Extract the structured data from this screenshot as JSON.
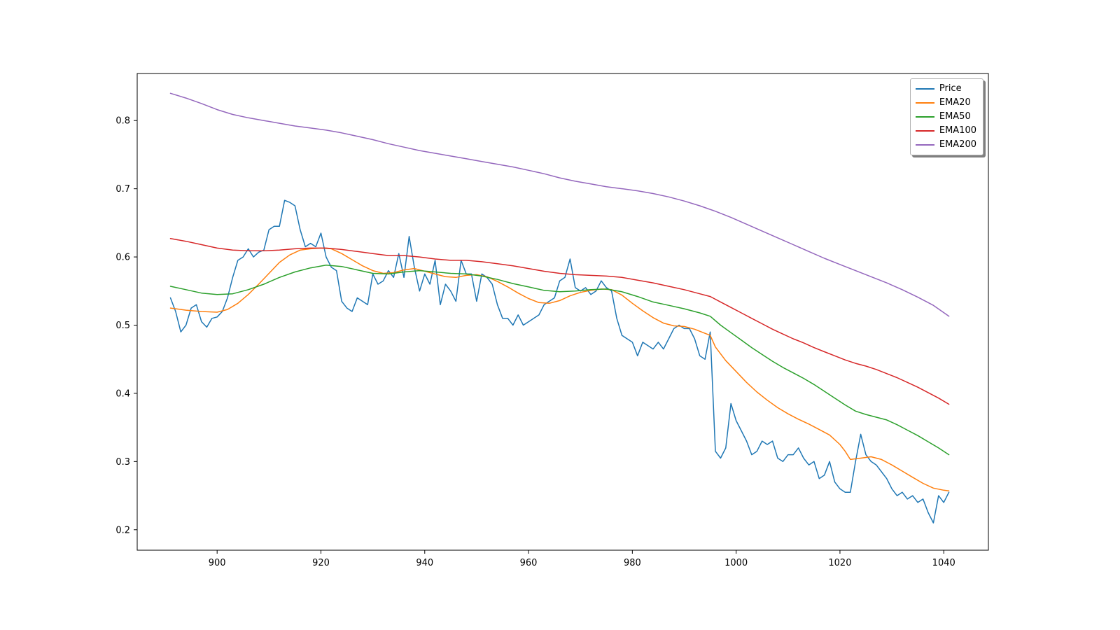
{
  "figure": {
    "background_color": "#ffffff",
    "axes_edge_color": "#000000",
    "tick_label_color": "#000000"
  },
  "chart_data": {
    "type": "line",
    "title": "",
    "xlabel": "",
    "ylabel": "",
    "grid": false,
    "legend_position": "upper right",
    "xlim": [
      884.6,
      1048.6
    ],
    "ylim": [
      0.17,
      0.869
    ],
    "x_ticks": [
      900,
      920,
      940,
      960,
      980,
      1000,
      1020,
      1040
    ],
    "y_ticks": [
      0.2,
      0.3,
      0.4,
      0.5,
      0.6,
      0.7,
      0.8
    ],
    "series": [
      {
        "name": "Price",
        "color": "#1f77b4",
        "x_start": 891,
        "x_step": 1,
        "y": [
          0.54,
          0.52,
          0.49,
          0.5,
          0.525,
          0.53,
          0.505,
          0.497,
          0.51,
          0.512,
          0.52,
          0.54,
          0.57,
          0.595,
          0.6,
          0.612,
          0.6,
          0.607,
          0.61,
          0.64,
          0.645,
          0.645,
          0.683,
          0.68,
          0.675,
          0.64,
          0.615,
          0.62,
          0.615,
          0.635,
          0.6,
          0.585,
          0.58,
          0.535,
          0.525,
          0.52,
          0.54,
          0.535,
          0.53,
          0.575,
          0.56,
          0.565,
          0.58,
          0.57,
          0.605,
          0.57,
          0.63,
          0.585,
          0.55,
          0.575,
          0.56,
          0.595,
          0.53,
          0.56,
          0.55,
          0.535,
          0.595,
          0.575,
          0.575,
          0.535,
          0.575,
          0.57,
          0.56,
          0.53,
          0.51,
          0.51,
          0.5,
          0.515,
          0.5,
          0.505,
          0.51,
          0.515,
          0.53,
          0.535,
          0.54,
          0.565,
          0.57,
          0.597,
          0.555,
          0.55,
          0.555,
          0.545,
          0.55,
          0.565,
          0.555,
          0.55,
          0.51,
          0.485,
          0.48,
          0.475,
          0.455,
          0.475,
          0.47,
          0.465,
          0.475,
          0.465,
          0.48,
          0.495,
          0.5,
          0.495,
          0.495,
          0.48,
          0.455,
          0.45,
          0.49,
          0.315,
          0.305,
          0.32,
          0.385,
          0.36,
          0.345,
          0.33,
          0.31,
          0.315,
          0.33,
          0.325,
          0.33,
          0.305,
          0.3,
          0.31,
          0.31,
          0.32,
          0.305,
          0.295,
          0.3,
          0.275,
          0.28,
          0.3,
          0.27,
          0.26,
          0.255,
          0.255,
          0.3,
          0.34,
          0.31,
          0.3,
          0.295,
          0.285,
          0.275,
          0.26,
          0.25,
          0.255,
          0.245,
          0.25,
          0.24,
          0.245,
          0.225,
          0.21,
          0.25,
          0.24,
          0.255
        ]
      },
      {
        "name": "EMA20",
        "color": "#ff7f0e",
        "x": [
          891,
          894,
          897,
          900,
          902,
          904,
          906,
          908,
          910,
          912,
          914,
          916,
          918,
          920,
          922,
          924,
          926,
          928,
          930,
          932,
          934,
          936,
          938,
          940,
          942,
          944,
          946,
          948,
          950,
          952,
          954,
          956,
          958,
          960,
          962,
          964,
          966,
          968,
          970,
          972,
          974,
          976,
          978,
          980,
          982,
          984,
          986,
          988,
          990,
          992,
          994,
          995,
          996,
          998,
          1000,
          1002,
          1004,
          1006,
          1008,
          1010,
          1012,
          1014,
          1016,
          1018,
          1020,
          1021,
          1022,
          1024,
          1026,
          1028,
          1030,
          1032,
          1034,
          1036,
          1038,
          1040,
          1041
        ],
        "y": [
          0.525,
          0.522,
          0.52,
          0.519,
          0.523,
          0.532,
          0.545,
          0.56,
          0.576,
          0.592,
          0.603,
          0.61,
          0.612,
          0.613,
          0.612,
          0.605,
          0.596,
          0.587,
          0.58,
          0.576,
          0.577,
          0.581,
          0.583,
          0.579,
          0.575,
          0.571,
          0.57,
          0.573,
          0.574,
          0.571,
          0.564,
          0.556,
          0.547,
          0.539,
          0.533,
          0.532,
          0.536,
          0.543,
          0.548,
          0.551,
          0.553,
          0.552,
          0.544,
          0.532,
          0.521,
          0.511,
          0.503,
          0.499,
          0.498,
          0.494,
          0.488,
          0.485,
          0.468,
          0.448,
          0.432,
          0.416,
          0.402,
          0.39,
          0.379,
          0.37,
          0.362,
          0.355,
          0.347,
          0.339,
          0.325,
          0.315,
          0.303,
          0.305,
          0.307,
          0.303,
          0.295,
          0.286,
          0.277,
          0.268,
          0.261,
          0.258,
          0.257
        ]
      },
      {
        "name": "EMA50",
        "color": "#2ca02c",
        "x": [
          891,
          894,
          897,
          900,
          903,
          906,
          909,
          912,
          915,
          918,
          921,
          924,
          927,
          930,
          933,
          936,
          939,
          942,
          945,
          948,
          951,
          954,
          957,
          960,
          963,
          966,
          969,
          972,
          975,
          978,
          981,
          984,
          987,
          990,
          993,
          995,
          997,
          999,
          1001,
          1003,
          1005,
          1007,
          1009,
          1011,
          1013,
          1015,
          1017,
          1019,
          1021,
          1023,
          1025,
          1027,
          1029,
          1031,
          1033,
          1035,
          1037,
          1039,
          1041
        ],
        "y": [
          0.557,
          0.552,
          0.547,
          0.545,
          0.546,
          0.552,
          0.56,
          0.57,
          0.578,
          0.584,
          0.588,
          0.586,
          0.581,
          0.576,
          0.575,
          0.578,
          0.58,
          0.578,
          0.576,
          0.575,
          0.572,
          0.567,
          0.561,
          0.556,
          0.551,
          0.549,
          0.55,
          0.552,
          0.553,
          0.549,
          0.542,
          0.534,
          0.529,
          0.524,
          0.518,
          0.513,
          0.5,
          0.489,
          0.478,
          0.467,
          0.457,
          0.447,
          0.438,
          0.43,
          0.422,
          0.413,
          0.403,
          0.393,
          0.383,
          0.374,
          0.369,
          0.365,
          0.361,
          0.354,
          0.346,
          0.338,
          0.329,
          0.32,
          0.31
        ]
      },
      {
        "name": "EMA100",
        "color": "#d62728",
        "x": [
          891,
          894,
          897,
          900,
          903,
          906,
          909,
          912,
          915,
          918,
          921,
          924,
          927,
          930,
          933,
          936,
          939,
          942,
          945,
          948,
          951,
          954,
          957,
          960,
          963,
          966,
          969,
          972,
          975,
          978,
          981,
          984,
          987,
          990,
          993,
          995,
          997,
          999,
          1001,
          1003,
          1005,
          1007,
          1009,
          1011,
          1013,
          1015,
          1017,
          1019,
          1021,
          1023,
          1025,
          1027,
          1029,
          1031,
          1033,
          1035,
          1037,
          1039,
          1041
        ],
        "y": [
          0.627,
          0.623,
          0.618,
          0.613,
          0.61,
          0.609,
          0.609,
          0.61,
          0.612,
          0.613,
          0.613,
          0.611,
          0.608,
          0.605,
          0.602,
          0.602,
          0.6,
          0.597,
          0.595,
          0.595,
          0.593,
          0.59,
          0.587,
          0.583,
          0.579,
          0.576,
          0.574,
          0.573,
          0.572,
          0.57,
          0.566,
          0.562,
          0.557,
          0.552,
          0.546,
          0.542,
          0.534,
          0.526,
          0.518,
          0.51,
          0.502,
          0.494,
          0.487,
          0.48,
          0.474,
          0.467,
          0.461,
          0.455,
          0.449,
          0.444,
          0.44,
          0.435,
          0.429,
          0.423,
          0.416,
          0.409,
          0.401,
          0.393,
          0.384
        ]
      },
      {
        "name": "EMA200",
        "color": "#9467bd",
        "x": [
          891,
          894,
          897,
          900,
          903,
          906,
          909,
          912,
          915,
          918,
          921,
          924,
          927,
          930,
          933,
          936,
          939,
          942,
          945,
          948,
          951,
          954,
          957,
          960,
          963,
          966,
          969,
          972,
          975,
          978,
          981,
          984,
          987,
          990,
          993,
          996,
          999,
          1002,
          1005,
          1008,
          1011,
          1014,
          1017,
          1020,
          1023,
          1026,
          1029,
          1032,
          1035,
          1038,
          1041
        ],
        "y": [
          0.84,
          0.833,
          0.825,
          0.816,
          0.809,
          0.804,
          0.8,
          0.796,
          0.792,
          0.789,
          0.786,
          0.782,
          0.777,
          0.772,
          0.766,
          0.761,
          0.756,
          0.752,
          0.748,
          0.744,
          0.74,
          0.736,
          0.732,
          0.727,
          0.722,
          0.716,
          0.711,
          0.707,
          0.703,
          0.7,
          0.697,
          0.693,
          0.688,
          0.682,
          0.675,
          0.667,
          0.658,
          0.648,
          0.638,
          0.628,
          0.618,
          0.608,
          0.598,
          0.589,
          0.58,
          0.571,
          0.562,
          0.552,
          0.541,
          0.529,
          0.513
        ]
      }
    ]
  }
}
